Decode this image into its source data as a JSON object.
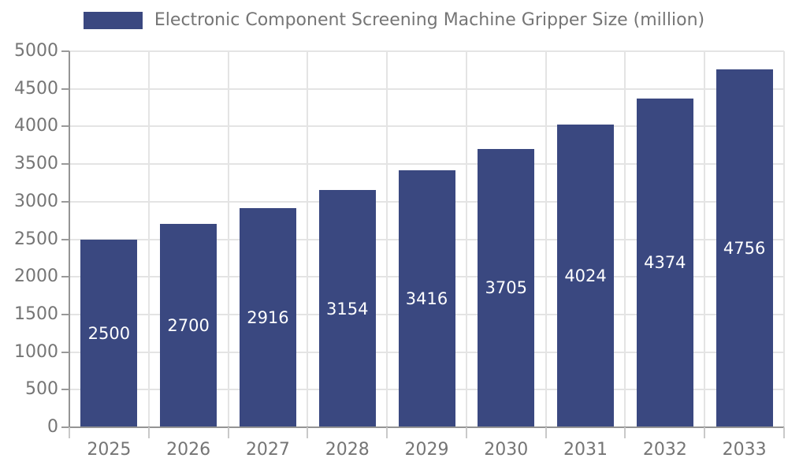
{
  "colors": {
    "bar": "#3a4880",
    "grid": "#e4e4e4",
    "axis": "#949494",
    "tick": "#9a9a9a",
    "minor_tick": "#c9c9c9",
    "label": "#757575",
    "value_label": "#ffffff",
    "background": "#ffffff"
  },
  "legend": {
    "label": "Electronic Component Screening Machine Gripper Size (million)"
  },
  "chart_data": {
    "type": "bar",
    "title": "Electronic Component Screening Machine Gripper Size (million)",
    "categories": [
      "2025",
      "2026",
      "2027",
      "2028",
      "2029",
      "2030",
      "2031",
      "2032",
      "2033"
    ],
    "values": [
      2500,
      2700,
      2916,
      3154,
      3416,
      3705,
      4024,
      4374,
      4756
    ],
    "xlabel": "",
    "ylabel": "",
    "ylim": [
      0,
      5000
    ],
    "yticks": [
      0,
      500,
      1000,
      1500,
      2000,
      2500,
      3000,
      3500,
      4000,
      4500,
      5000
    ],
    "grid": true,
    "legend_position": "top-center",
    "value_label_position": "inside-center",
    "bar_color": "#3a4880",
    "value_label_color": "#ffffff"
  }
}
